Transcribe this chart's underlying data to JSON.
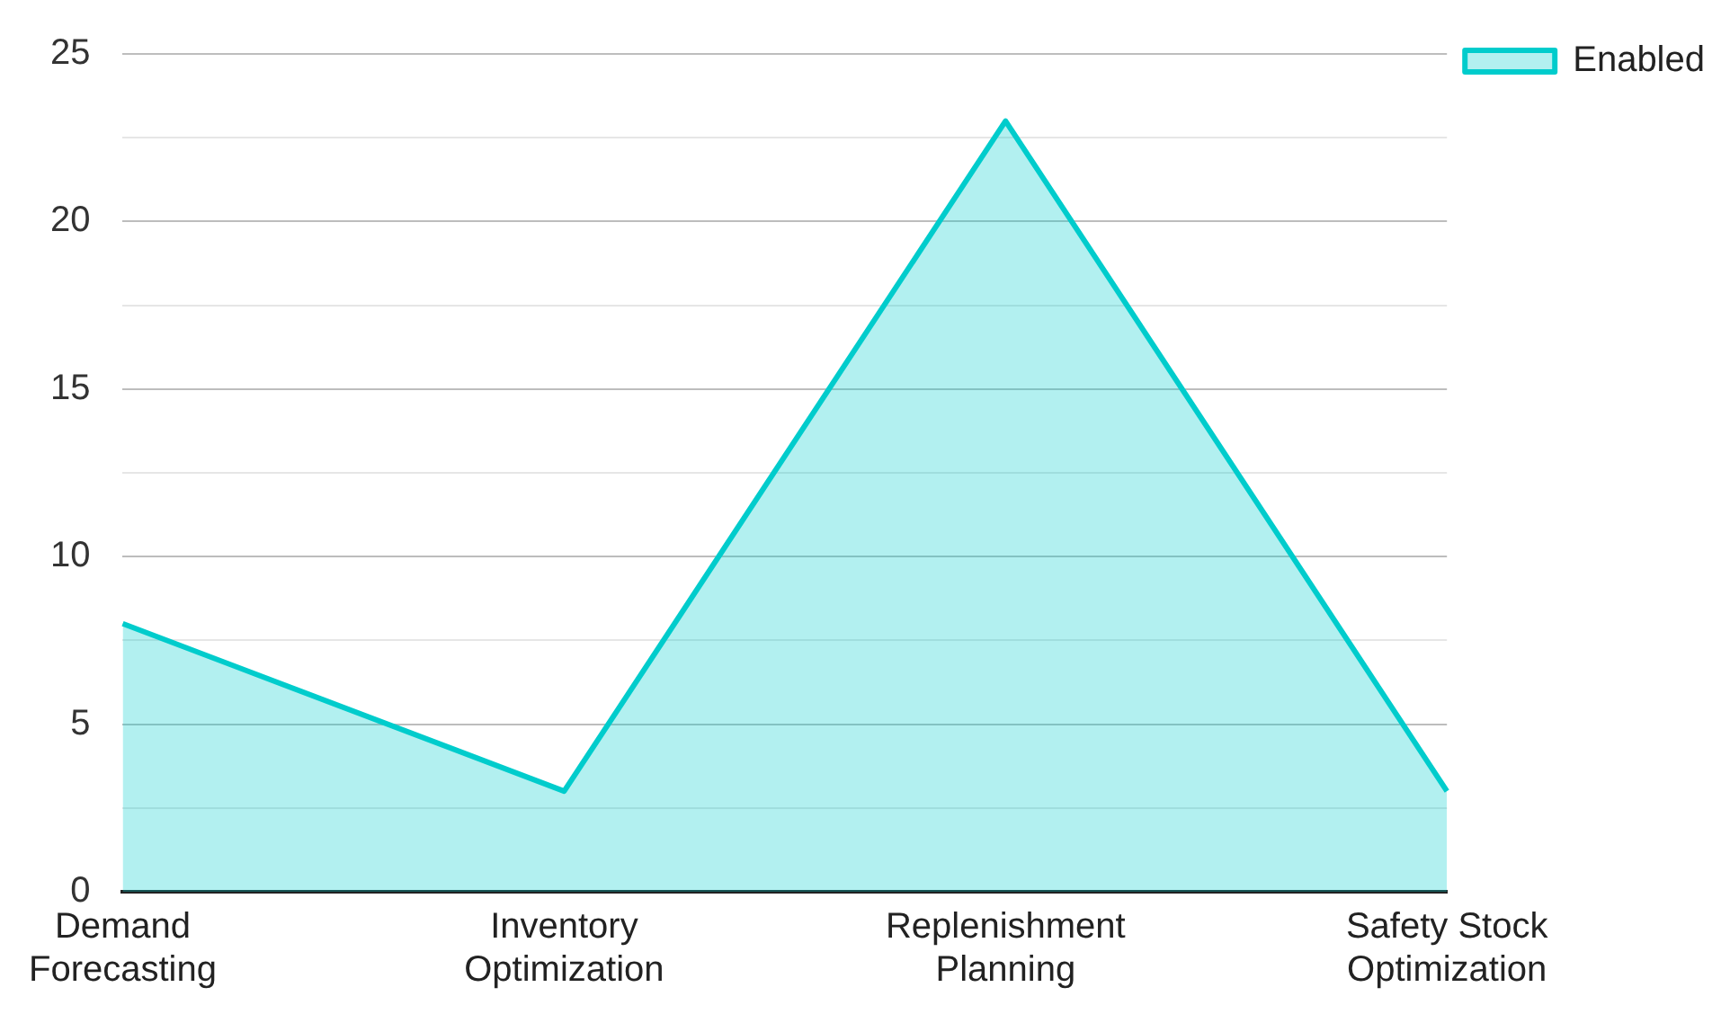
{
  "chart_data": {
    "type": "area",
    "categories": [
      "Demand Forecasting",
      "Inventory Optimization",
      "Replenishment Planning",
      "Safety Stock Optimization"
    ],
    "series": [
      {
        "name": "Enabled",
        "color": "#00cccc",
        "values": [
          8,
          3,
          23,
          3
        ]
      }
    ],
    "ylim": [
      0,
      25
    ],
    "yticks": [
      0,
      {
        "value": 2.5,
        "label": null
      },
      5,
      {
        "value": 7.5,
        "label": null
      },
      10,
      {
        "value": 12.5,
        "label": null
      },
      15,
      {
        "value": 17.5,
        "label": null
      },
      20,
      {
        "value": 22.5,
        "label": null
      },
      25
    ],
    "grid": "y",
    "legend": "top right",
    "marker": "none"
  }
}
